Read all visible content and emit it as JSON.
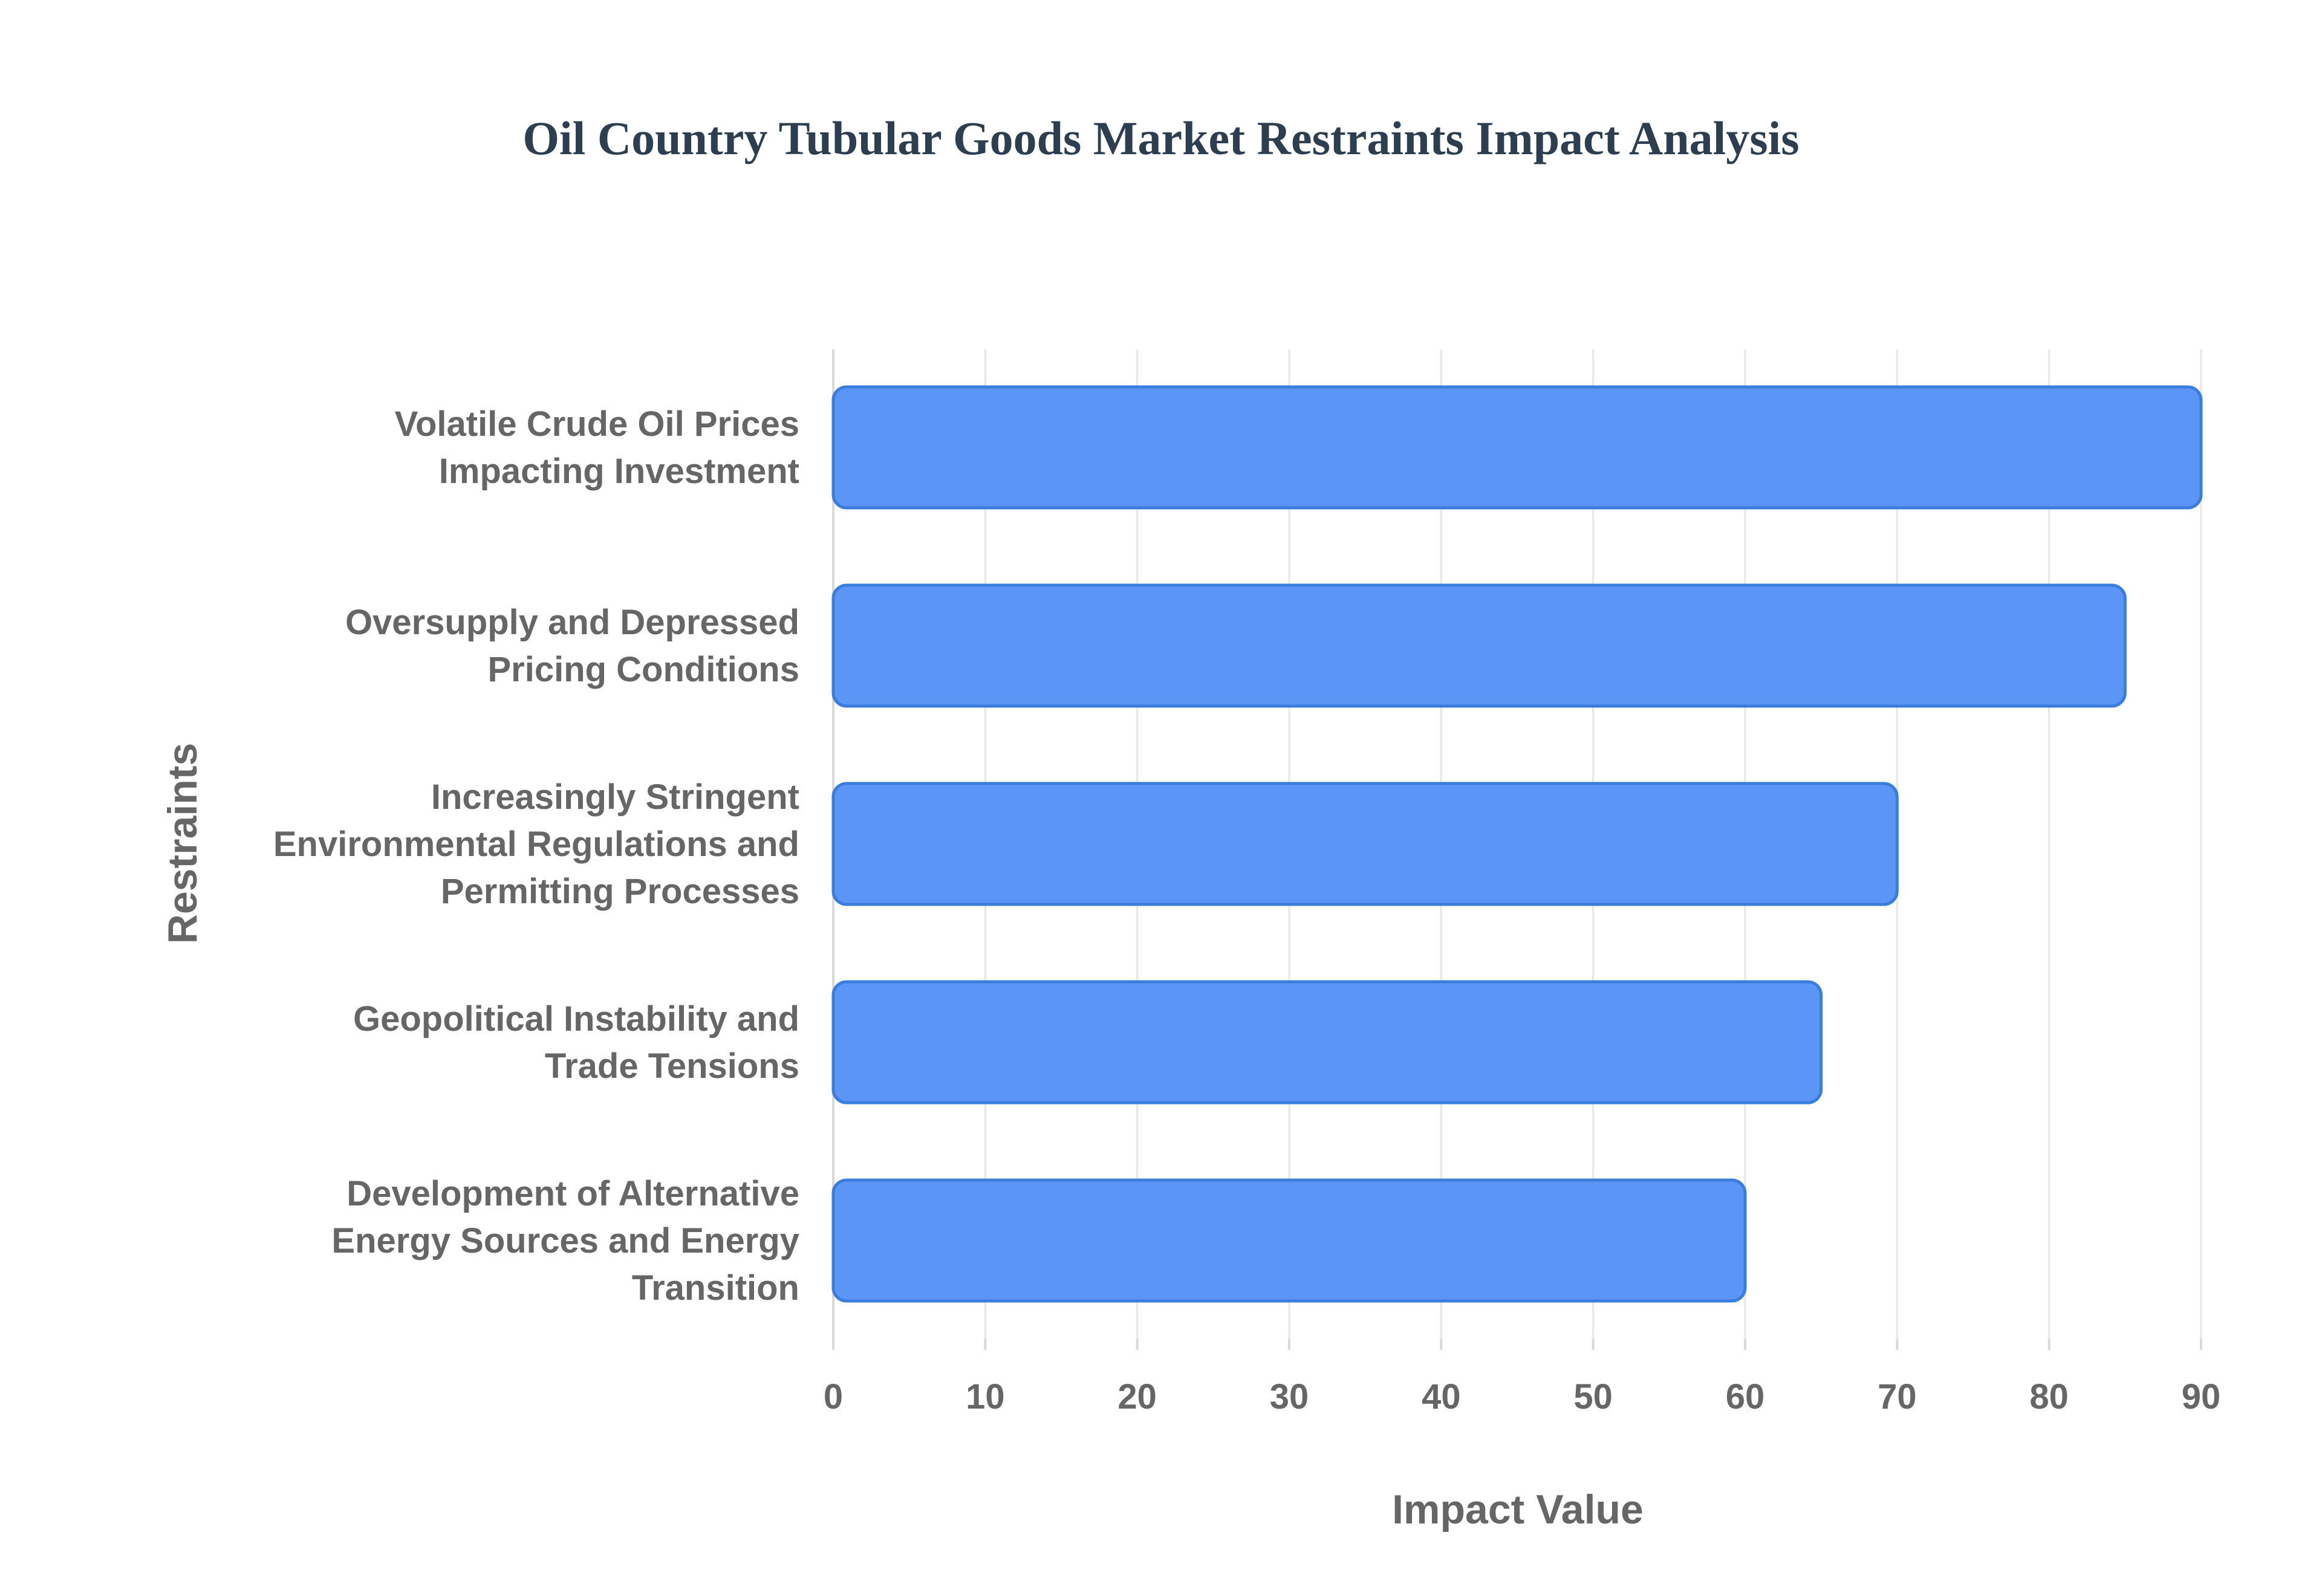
{
  "chart_data": {
    "type": "bar",
    "orientation": "horizontal",
    "title": "Oil Country Tubular Goods Market Restraints Impact Analysis",
    "xlabel": "Impact Value",
    "ylabel": "Restraints",
    "categories": [
      [
        "Volatile Crude Oil Prices",
        "Impacting Investment"
      ],
      [
        "Oversupply and Depressed",
        "Pricing Conditions"
      ],
      [
        "Increasingly Stringent",
        "Environmental Regulations and",
        "Permitting Processes"
      ],
      [
        "Geopolitical Instability and",
        "Trade Tensions"
      ],
      [
        "Development of Alternative",
        "Energy Sources and Energy",
        "Transition"
      ]
    ],
    "values": [
      90,
      85,
      70,
      65,
      60
    ],
    "xlim": [
      0,
      90
    ],
    "xticks": [
      "0",
      "10",
      "20",
      "30",
      "40",
      "50",
      "60",
      "70",
      "80",
      "90"
    ],
    "grid": true,
    "legend": "none",
    "colors": {
      "bar_fill": "#5b95f5",
      "bar_stroke": "#3b7ddd",
      "title": "#2c3e50",
      "text": "#666666"
    }
  }
}
